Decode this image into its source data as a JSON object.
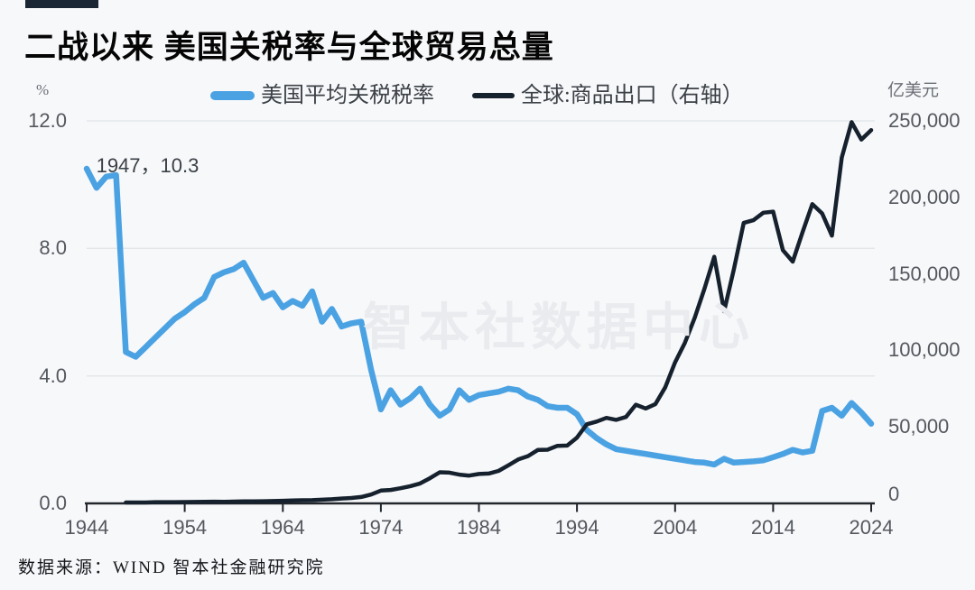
{
  "watermark": "智本社数据中心",
  "footer": "数据来源：WIND 智本社金融研究院",
  "chart_data": {
    "type": "line",
    "title": "二战以来 美国关税率与全球贸易总量",
    "grid": "horizontal",
    "legend_position": "top",
    "x_axis": {
      "tick_values": [
        1944,
        1954,
        1964,
        1974,
        1984,
        1994,
        2004,
        2014,
        2024
      ],
      "range": [
        1944,
        2024
      ]
    },
    "left_axis": {
      "unit": "%",
      "tick_values": [
        0,
        4,
        8,
        12
      ],
      "tick_labels": [
        "0.0",
        "4.0",
        "8.0",
        "12.0"
      ],
      "range": [
        0,
        12
      ]
    },
    "right_axis": {
      "unit": "亿美元",
      "tick_values": [
        0,
        50000,
        100000,
        150000,
        200000,
        250000
      ],
      "tick_labels": [
        "0",
        "50,000",
        "100,000",
        "150,000",
        "200,000",
        "250,000"
      ],
      "range": [
        0,
        250000
      ]
    },
    "annotation": {
      "x": 1947,
      "y": 10.3,
      "text": "1947，10.3"
    },
    "series": [
      {
        "name": "美国平均关税税率",
        "axis": "left",
        "color": "#4ba2e3",
        "x_start": 1944,
        "values": [
          10.5,
          9.9,
          10.25,
          10.3,
          4.75,
          4.6,
          4.9,
          5.2,
          5.5,
          5.8,
          6.0,
          6.25,
          6.45,
          7.1,
          7.25,
          7.35,
          7.55,
          7.0,
          6.45,
          6.6,
          6.15,
          6.35,
          6.2,
          6.65,
          5.7,
          6.1,
          5.55,
          5.65,
          5.7,
          4.2,
          2.95,
          3.55,
          3.1,
          3.3,
          3.6,
          3.1,
          2.75,
          2.95,
          3.55,
          3.25,
          3.4,
          3.45,
          3.5,
          3.6,
          3.55,
          3.35,
          3.25,
          3.05,
          3.0,
          3.0,
          2.8,
          2.3,
          2.05,
          1.85,
          1.7,
          1.65,
          1.6,
          1.55,
          1.5,
          1.45,
          1.4,
          1.35,
          1.3,
          1.28,
          1.22,
          1.4,
          1.28,
          1.3,
          1.32,
          1.35,
          1.45,
          1.55,
          1.68,
          1.6,
          1.65,
          2.9,
          3.0,
          2.75,
          3.15,
          2.85,
          2.5
        ]
      },
      {
        "name": "全球:商品出口（右轴）",
        "axis": "right",
        "color": "#16212e",
        "x_start": 1948,
        "values": [
          590,
          580,
          610,
          820,
          800,
          830,
          860,
          930,
          1030,
          1110,
          1080,
          1150,
          1290,
          1340,
          1410,
          1540,
          1730,
          1870,
          2040,
          2150,
          2390,
          2730,
          3170,
          3540,
          4190,
          5790,
          8400,
          8770,
          9910,
          11280,
          13060,
          16450,
          20340,
          20100,
          18830,
          18160,
          19220,
          19500,
          21200,
          24900,
          28700,
          30900,
          34900,
          35100,
          37600,
          37800,
          43000,
          51700,
          53500,
          55900,
          54600,
          56500,
          64500,
          62000,
          64900,
          75900,
          92200,
          104900,
          121300,
          140300,
          161200,
          125600,
          153000,
          183300,
          185100,
          190000,
          190700,
          165500,
          158000,
          177300,
          195600,
          189500,
          175000,
          226000,
          249200,
          237800,
          244000
        ]
      }
    ]
  }
}
